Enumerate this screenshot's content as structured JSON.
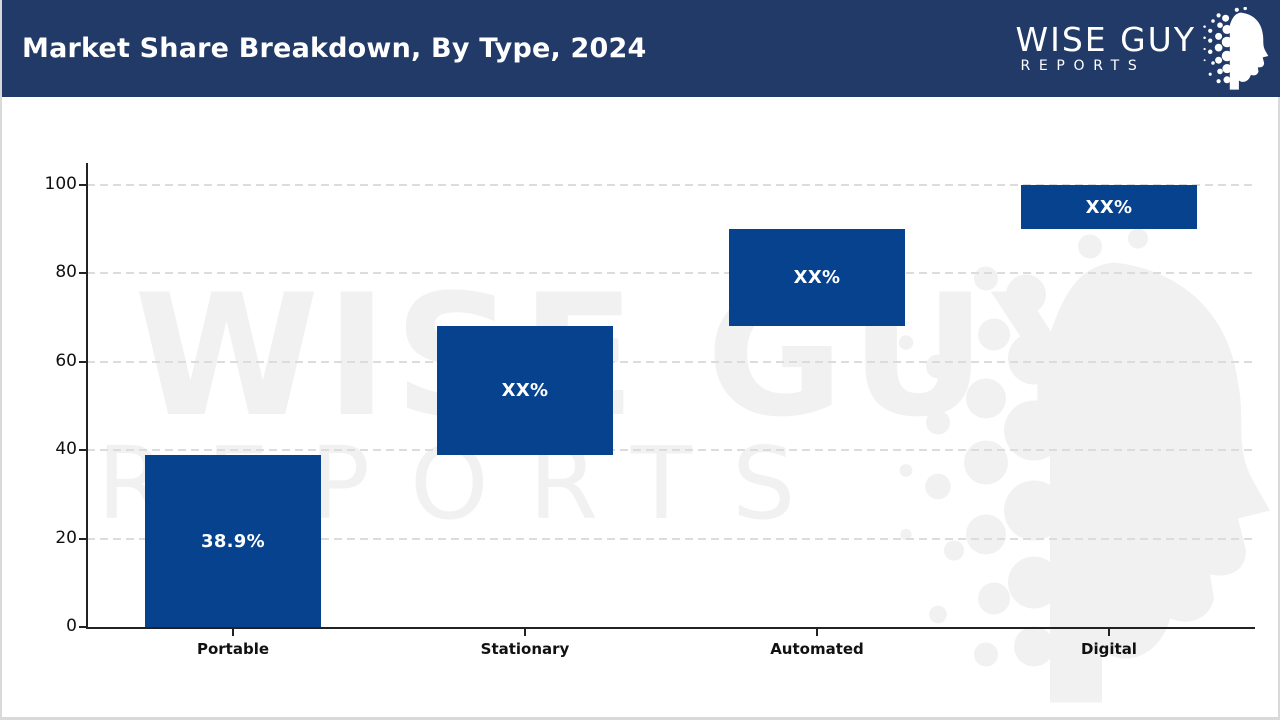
{
  "header": {
    "title": "Market Share Breakdown, By Type, 2024",
    "logo": {
      "line1": "WISE GUY",
      "line2": "REPORTS"
    }
  },
  "watermark": {
    "line1": "WISE GUY",
    "line2": "REPORTS"
  },
  "colors": {
    "header_bg": "#223a67",
    "bar": "#06428e",
    "grid": "#dcdcdc",
    "axis": "#222222",
    "watermark": "#f1f1f2",
    "label_on_bar": "#ffffff"
  },
  "icons": {
    "logo_head": "dotted-head-profile-icon"
  },
  "chart_data": {
    "type": "bar",
    "subtype": "waterfall",
    "title": "Market Share Breakdown, By Type, 2024",
    "categories": [
      "Portable",
      "Stationary",
      "Automated",
      "Digital"
    ],
    "bars": [
      {
        "category": "Portable",
        "start": 0,
        "end": 38.9,
        "label": "38.9%"
      },
      {
        "category": "Stationary",
        "start": 38.9,
        "end": 68.0,
        "label": "XX%"
      },
      {
        "category": "Automated",
        "start": 68.0,
        "end": 90.0,
        "label": "XX%"
      },
      {
        "category": "Digital",
        "start": 90.0,
        "end": 100.0,
        "label": "XX%"
      }
    ],
    "xlabel": "",
    "ylabel": "",
    "yticks": [
      0,
      20,
      40,
      60,
      80,
      100
    ],
    "ylim": [
      0,
      105
    ],
    "grid": "dashed-horizontal",
    "legend_position": "none"
  }
}
